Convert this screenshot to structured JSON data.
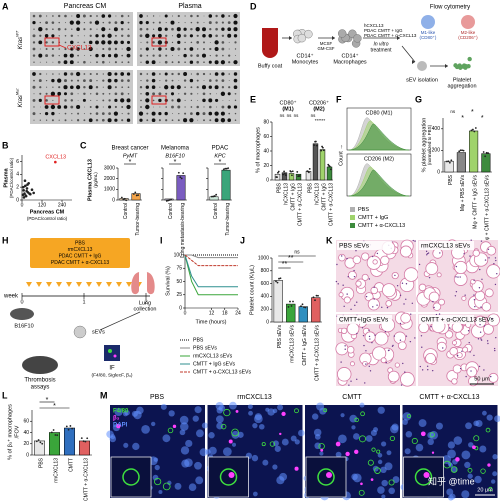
{
  "A": {
    "label": "A",
    "titles": [
      "Pancreas CM",
      "Plasma"
    ],
    "rows": [
      {
        "gene": "Kras",
        "allele": "WT"
      },
      {
        "gene": "Kras",
        "allele": "Mut"
      }
    ],
    "hit": "CXCL13"
  },
  "B": {
    "label": "B",
    "ylabel": [
      "Plasma",
      "(PDAC/control ratio)"
    ],
    "xlabel": [
      "Pancreas CM",
      "(PDAC/control ratio)"
    ],
    "xlim": [
      0,
      300
    ],
    "ylim": [
      0,
      7
    ],
    "xticks": [
      0,
      120,
      240
    ],
    "yticks": [
      0,
      2,
      4,
      6
    ],
    "x": [
      5,
      10,
      15,
      20,
      25,
      30,
      35,
      40,
      45,
      12,
      18,
      28,
      50,
      60,
      8,
      22,
      33,
      70,
      200
    ],
    "y": [
      0.8,
      1.5,
      1.0,
      2.2,
      0.6,
      1.8,
      1.2,
      2.6,
      1.0,
      0.4,
      3.0,
      1.4,
      0.9,
      1.6,
      2.0,
      0.7,
      2.4,
      1.1,
      5.9
    ],
    "color": "#222",
    "hit_color": "#e02020",
    "hit": "CXCL13"
  },
  "C": {
    "label": "C",
    "ylabel": [
      "Plasma CXCL13",
      "(pg/mL)"
    ],
    "ylim": [
      0,
      3000
    ],
    "yticks": [
      0,
      1000,
      2000,
      3000
    ],
    "groups": [
      {
        "title": "Breast cancer",
        "model": "PyMT",
        "categories": [
          "Control",
          "Tumor-bearing"
        ],
        "values": [
          150,
          600
        ],
        "colors": [
          "#fbe3c4",
          "#f5a54a"
        ],
        "sig": "*"
      },
      {
        "title": "Melanoma",
        "model": "B16F10",
        "categories": [
          "Control",
          "Lung metastasis-bearing"
        ],
        "values": [
          100,
          2300
        ],
        "colors": [
          "#ded6f0",
          "#7a5cc0"
        ],
        "sig": "*"
      },
      {
        "title": "PDAC",
        "model": "KPC",
        "categories": [
          "Control",
          "Tumor-bearing"
        ],
        "values": [
          300,
          2800
        ],
        "colors": [
          "#cfeadc",
          "#3aa57a"
        ],
        "sig": "*"
      }
    ]
  },
  "D": {
    "label": "D",
    "buffy": "Buffy coat",
    "mono": [
      "CD14⁺",
      "Monocytes"
    ],
    "factors": [
      "MCSF",
      "GM-CSF"
    ],
    "macro": [
      "CD14⁺",
      "Macrophages"
    ],
    "treat": [
      "hCXCL13",
      "PDAC CMTT + IgG",
      "PDAC CMTT + α-CXCL13"
    ],
    "invitro": [
      "In vitro",
      "treatment"
    ],
    "flow": "Flow cytometry",
    "m1": [
      "M1-like",
      "(CD80⁺)"
    ],
    "m2": [
      "M2-like",
      "(CD206⁺)"
    ],
    "sev": "sEV isolation",
    "plt": [
      "Platelet",
      "aggregation"
    ]
  },
  "E": {
    "label": "E",
    "ylabel": "% of macrophages",
    "ylim": [
      0,
      80
    ],
    "yticks": [
      0,
      20,
      40,
      60,
      80
    ],
    "categories": [
      "PBS",
      "hCXCL13",
      "CMTT + IgG",
      "CMTT + α-CXCL13"
    ],
    "colors": [
      "#e8e8e8",
      "#555555",
      "#9fd36b",
      "#3d8b3d"
    ],
    "groups": [
      {
        "title": "CD80⁺",
        "sub": "(M1)",
        "values": [
          8,
          10,
          9,
          8
        ],
        "sig": [
          "ns",
          "ns",
          "ns"
        ]
      },
      {
        "title": "CD206⁺",
        "sub": "(M2)",
        "values": [
          12,
          50,
          42,
          18
        ],
        "sig": [
          "ns",
          "******"
        ]
      }
    ]
  },
  "F": {
    "label": "F",
    "panels": [
      "CD80 (M1)",
      "CD206 (M2)"
    ],
    "ylabel": "Count →",
    "legend": [
      "PBS",
      "CMTT + IgG",
      "CMTT + α-CXCL13"
    ],
    "colors": [
      "#b0b0b0",
      "#9fd36b",
      "#3d8b3d"
    ]
  },
  "G": {
    "label": "G",
    "ylabel": [
      "% platelet aggregation",
      "(normalized to PBS)"
    ],
    "ylim": [
      0,
      500
    ],
    "yticks": [
      0,
      200,
      400
    ],
    "categories": [
      "PBS",
      "Mφ + PBS sEVs",
      "Mφ + CMTT + IgG sEVs",
      "Mφ + CMTT + α-CXCL13 sEVs"
    ],
    "values": [
      100,
      180,
      380,
      170
    ],
    "colors": [
      "#e8e8e8",
      "#888888",
      "#9fd36b",
      "#3d8b3d"
    ],
    "sig": [
      "ns",
      "*",
      "*",
      "*"
    ]
  },
  "H": {
    "label": "H",
    "groups": [
      "PBS",
      "rmCXCL13",
      "PDAC CMTT + IgG",
      "PDAC CMTT + α-CXCL13"
    ],
    "week": "week",
    "weeks": [
      "0",
      "1",
      "2"
    ],
    "cells": "B16F10",
    "lung": [
      "Lung",
      "collection"
    ],
    "sevs": "sEVs",
    "assay": [
      "Thrombosis",
      "assays"
    ],
    "if": [
      "IF",
      "(F4/80, SiglecF, β₃)"
    ]
  },
  "I": {
    "label": "I",
    "ylabel": "Survival (%)",
    "xlabel": "Time (hours)",
    "xlim": [
      0,
      24
    ],
    "ylim": [
      0,
      100
    ],
    "xticks": [
      0,
      12,
      18,
      24
    ],
    "yticks": [
      0,
      25,
      50,
      75,
      100
    ],
    "x": [
      0,
      3,
      6,
      12,
      24
    ],
    "series": [
      {
        "name": "PBS",
        "color": "#000000",
        "dash": "1 1",
        "values": [
          100,
          100,
          100,
          100,
          100
        ]
      },
      {
        "name": "PBS sEVs",
        "color": "#888888",
        "dash": "",
        "values": [
          100,
          100,
          95,
          95,
          95
        ]
      },
      {
        "name": "rmCXCL13 sEVs",
        "color": "#3aa53a",
        "dash": "",
        "values": [
          100,
          50,
          25,
          25,
          25
        ]
      },
      {
        "name": "CMTT + IgG sEVs",
        "color": "#2f8f8f",
        "dash": "",
        "values": [
          100,
          60,
          40,
          40,
          40
        ]
      },
      {
        "name": "CMTT + α-CXCL13 sEVs",
        "color": "#c0392b",
        "dash": "3 1",
        "values": [
          100,
          90,
          80,
          80,
          80
        ]
      }
    ]
  },
  "J": {
    "label": "J",
    "ylabel": "Platelet count (K/μL)",
    "ylim": [
      0,
      1000
    ],
    "yticks": [
      0,
      200,
      400,
      600,
      800,
      1000
    ],
    "categories": [
      "PBS sEVs",
      "rmCXCL13 sEVs",
      "CMTT + IgG sEVs",
      "CMTT + α-CXCL13 sEVs"
    ],
    "values": [
      650,
      280,
      240,
      380
    ],
    "colors": [
      "#e8e8e8",
      "#3aa53a",
      "#2f8fbf",
      "#e06060"
    ],
    "sig": [
      "**",
      "**",
      "ns"
    ]
  },
  "K": {
    "label": "K",
    "titles": [
      "PBS sEVs",
      "rmCXCL13 sEVs",
      "CMTT+IgG sEVs",
      "CMTT + α-CXCL13 sEVs"
    ],
    "scale": "50 μm"
  },
  "L": {
    "label": "L",
    "ylabel": [
      "% of β₃⁺ macrophages",
      "/FOV"
    ],
    "ylim": [
      0,
      80
    ],
    "yticks": [
      0,
      20,
      40,
      60
    ],
    "categories": [
      "PBS",
      "rmCXCL13",
      "CMTT",
      "CMTT + α-CXCL13"
    ],
    "values": [
      25,
      40,
      48,
      25
    ],
    "colors": [
      "#e8e8e8",
      "#3aa53a",
      "#2f6fbf",
      "#e06060"
    ],
    "sig": [
      "*",
      "*"
    ]
  },
  "M": {
    "label": "M",
    "titles": [
      "PBS",
      "rmCXCL13",
      "CMTT",
      "CMTT + α-CXCL13"
    ],
    "channels": [
      "F4/80",
      "β₃",
      "DAPI"
    ],
    "channel_colors": [
      "#3fe03f",
      "#ff40ff",
      "#6090ff"
    ],
    "scale": "20 μm",
    "watermark": "知乎 @time"
  }
}
